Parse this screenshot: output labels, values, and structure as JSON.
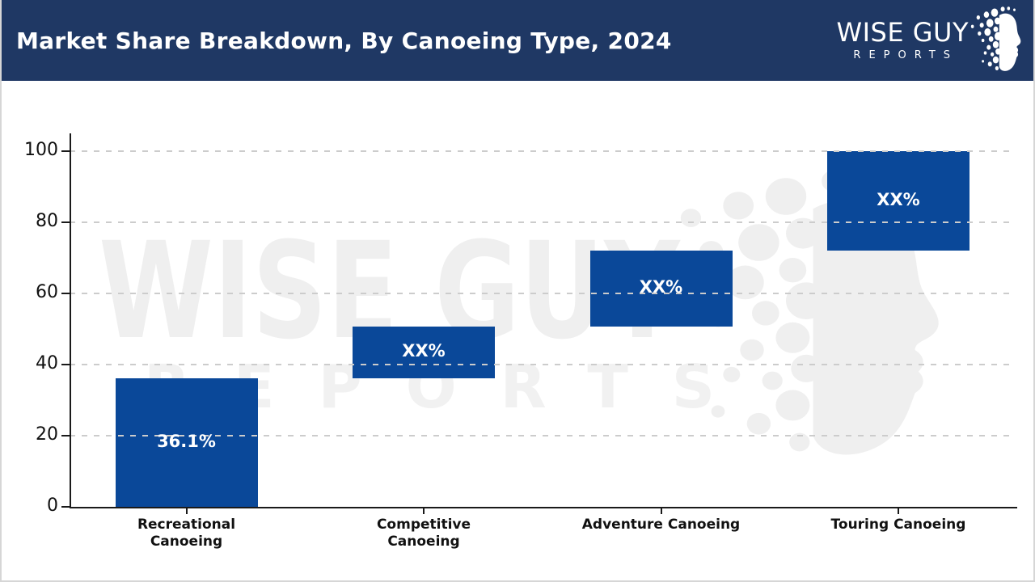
{
  "header": {
    "title": "Market Share Breakdown, By Canoeing Type, 2024",
    "logo": {
      "name": "WISE GUY",
      "subname": "REPORTS"
    }
  },
  "watermark": {
    "line1": "WISE GUY",
    "line2": "REPORTS"
  },
  "colors": {
    "header_bg": "#1f3864",
    "bar": "#0a4899",
    "bar_label": "#ffffff",
    "grid": "#cccccc",
    "axis": "#1a1a1a",
    "watermark": "#efefef",
    "page_border": "#d6d6d6",
    "title_text": "#ffffff"
  },
  "chart_data": {
    "type": "bar",
    "subtype": "stacked-waterfall-percent",
    "title": "Market Share Breakdown, By Canoeing Type, 2024",
    "xlabel": "",
    "ylabel": "",
    "ylim": [
      0,
      100
    ],
    "yticks": [
      0,
      20,
      40,
      60,
      80,
      100
    ],
    "grid": {
      "horizontal": true,
      "style": "dashed",
      "color": "#cccccc"
    },
    "legend": "none",
    "bar_color": "#0a4899",
    "bar_label_color": "#ffffff",
    "categories": [
      "Recreational Canoeing",
      "Competitive Canoeing",
      "Adventure Canoeing",
      "Touring Canoeing"
    ],
    "category_lines": [
      [
        "Recreational",
        "Canoeing"
      ],
      [
        "Competitive",
        "Canoeing"
      ],
      [
        "Adventure Canoeing"
      ],
      [
        "Touring Canoeing"
      ]
    ],
    "segments": [
      {
        "category": "Recreational Canoeing",
        "start": 0,
        "end": 36.1,
        "value": 36.1,
        "label": "36.1%"
      },
      {
        "category": "Competitive Canoeing",
        "start": 36.1,
        "end": 50.7,
        "value": 14.6,
        "label": "XX%"
      },
      {
        "category": "Adventure Canoeing",
        "start": 50.7,
        "end": 72.0,
        "value": 21.3,
        "label": "XX%"
      },
      {
        "category": "Touring Canoeing",
        "start": 72.0,
        "end": 100.0,
        "value": 28.0,
        "label": "XX%"
      }
    ]
  }
}
